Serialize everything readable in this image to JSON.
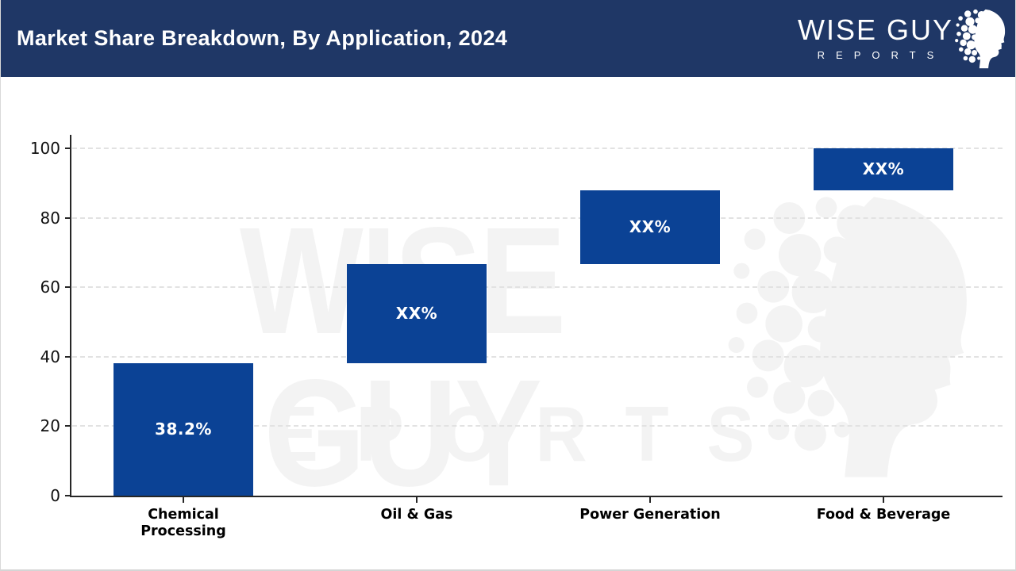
{
  "header": {
    "title": "Market Share Breakdown, By Application, 2024",
    "logo": {
      "wordmark": "WISE GUY",
      "subtext": "REPORTS"
    }
  },
  "watermark": {
    "wordmark": "WISE GUY",
    "subtext": "REPORTS"
  },
  "chart_data": {
    "type": "bar",
    "subtype": "waterfall",
    "title": "Market Share Breakdown, By Application, 2024",
    "categories": [
      "Chemical Processing",
      "Oil & Gas",
      "Power Generation",
      "Food & Beverage"
    ],
    "segments": [
      {
        "category": "Chemical Processing",
        "start": 0,
        "end": 38.2,
        "label": "38.2%"
      },
      {
        "category": "Oil & Gas",
        "start": 38.2,
        "end": 66.6,
        "label": "XX%"
      },
      {
        "category": "Power Generation",
        "start": 66.6,
        "end": 88.0,
        "label": "XX%"
      },
      {
        "category": "Food & Beverage",
        "start": 88.0,
        "end": 100.0,
        "label": "XX%"
      }
    ],
    "ylim": [
      0,
      104
    ],
    "yticks": [
      0,
      20,
      40,
      60,
      80,
      100
    ],
    "xlabel": "",
    "ylabel": "",
    "grid": "horizontal-dashed",
    "legend": "none",
    "bar_color": "#0b4295",
    "bar_label_color": "#ffffff",
    "axis_color": "#262626",
    "grid_color": "#e2e2e2"
  },
  "colors": {
    "header_bg": "#1f3766",
    "watermark": "#f3f3f3",
    "page_bg": "#ffffff"
  }
}
